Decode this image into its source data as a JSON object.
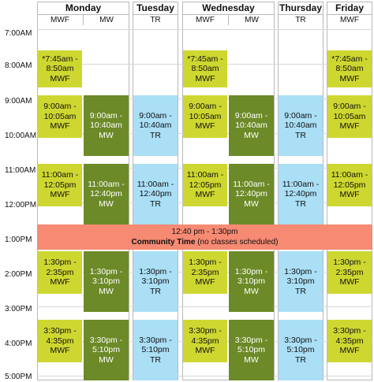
{
  "days": [
    {
      "name": "Monday",
      "subs": [
        "MWF",
        "MW"
      ]
    },
    {
      "name": "Tuesday",
      "subs": [
        "TR"
      ]
    },
    {
      "name": "Wednesday",
      "subs": [
        "MWF",
        "MW"
      ]
    },
    {
      "name": "Thursday",
      "subs": [
        "TR"
      ]
    },
    {
      "name": "Friday",
      "subs": [
        "MWF"
      ]
    }
  ],
  "times": [
    "7:00AM",
    "8:00AM",
    "9:00AM",
    "10:00AM",
    "11:00AM",
    "12:00PM",
    "1:00PM",
    "2:00PM",
    "3:00PM",
    "4:00PM",
    "5:00PM"
  ],
  "classes": {
    "mwf_745": "*7:45am -\n8:50am\nMWF",
    "mwf_900": "9:00am -\n10:05am\nMWF",
    "mw_900": "9:00am -\n10:40am\nMW",
    "tr_900": "9:00am -\n10:40am\nTR",
    "mwf_1100": "11:00am -\n12:05pm\nMWF",
    "mw_1100": "11:00am -\n12:40pm\nMW",
    "tr_1100": "11:00am -\n12:40pm\nTR",
    "mwf_130": "1:30pm -\n2:35pm\nMWF",
    "mw_130": "1:30pm -\n3:10pm\nMW",
    "tr_130": "1:30pm -\n3:10pm\nTR",
    "mwf_330": "3:30pm -\n4:35pm\nMWF",
    "mw_330": "3:30pm -\n5:10pm\nMW",
    "tr_330": "3:30pm -\n5:10pm\nTR"
  },
  "community": {
    "time": "12:40 pm - 1:30pm",
    "label": "Community Time",
    "note": " (no classes scheduled)"
  }
}
